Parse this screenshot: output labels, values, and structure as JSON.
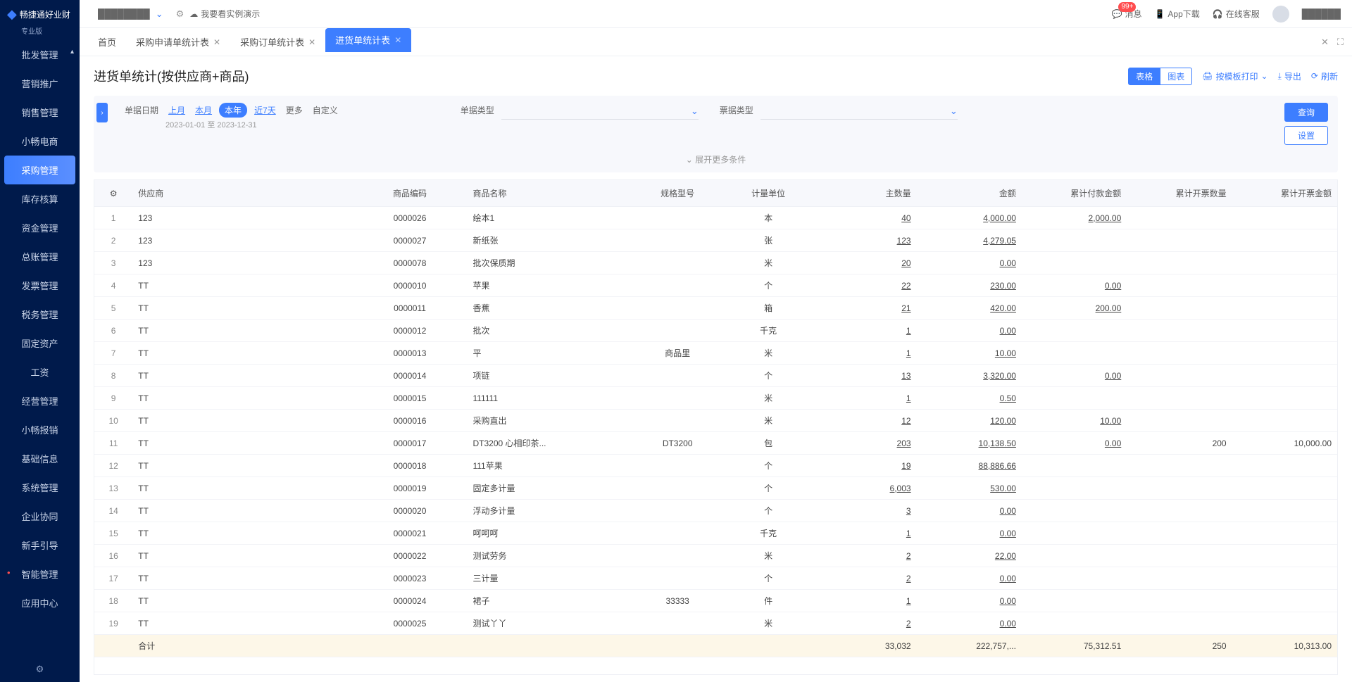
{
  "brand": {
    "name": "畅捷通好业财",
    "edition": "专业版"
  },
  "org": {
    "name": "████████"
  },
  "demo_link": "我要看实例演示",
  "top_right": [
    {
      "icon": "💬",
      "label": "消息",
      "badge": "99+"
    },
    {
      "icon": "📱",
      "label": "App下载"
    },
    {
      "icon": "🎧",
      "label": "在线客服"
    }
  ],
  "user_name": "██████",
  "nav": [
    {
      "label": "批发管理",
      "expanded": true
    },
    {
      "label": "营销推广"
    },
    {
      "label": "销售管理"
    },
    {
      "label": "小畅电商"
    },
    {
      "label": "采购管理",
      "active": true
    },
    {
      "label": "库存核算"
    },
    {
      "label": "资金管理"
    },
    {
      "label": "总账管理"
    },
    {
      "label": "发票管理"
    },
    {
      "label": "税务管理"
    },
    {
      "label": "固定资产"
    },
    {
      "label": "工资"
    },
    {
      "label": "经营管理"
    },
    {
      "label": "小畅报销"
    },
    {
      "label": "基础信息"
    },
    {
      "label": "系统管理"
    },
    {
      "label": "企业协同"
    },
    {
      "label": "新手引导"
    },
    {
      "label": "智能管理",
      "dot": true
    },
    {
      "label": "应用中心"
    }
  ],
  "tabs": [
    {
      "label": "首页",
      "closable": false
    },
    {
      "label": "采购申请单统计表",
      "closable": true
    },
    {
      "label": "采购订单统计表",
      "closable": true
    },
    {
      "label": "进货单统计表",
      "closable": true,
      "active": true
    }
  ],
  "page_title": "进货单统计(按供应商+商品)",
  "view_toggle": {
    "a": "表格",
    "b": "图表"
  },
  "tools": {
    "print": "按模板打印",
    "export": "导出",
    "refresh": "刷新"
  },
  "filters": {
    "date_label": "单据日期",
    "chips": [
      "上月",
      "本月",
      "本年",
      "近7天",
      "更多",
      "自定义"
    ],
    "active_chip": "本年",
    "date_range": "2023-01-01 至 2023-12-31",
    "bill_type_label": "单据类型",
    "invoice_type_label": "票据类型",
    "query_btn": "查询",
    "setting_btn": "设置",
    "expand_more": "展开更多条件"
  },
  "columns": [
    "供应商",
    "商品编码",
    "商品名称",
    "规格型号",
    "计量单位",
    "主数量",
    "金额",
    "累计付款金额",
    "累计开票数量",
    "累计开票金额"
  ],
  "rows": [
    {
      "i": 1,
      "supplier": "123",
      "code": "0000026",
      "name": "绘本1",
      "spec": "",
      "unit": "本",
      "qty": "40",
      "amt": "4,000.00",
      "paid": "2,000.00",
      "invq": "",
      "inva": ""
    },
    {
      "i": 2,
      "supplier": "123",
      "code": "0000027",
      "name": "新纸张",
      "spec": "",
      "unit": "张",
      "qty": "123",
      "amt": "4,279.05",
      "paid": "",
      "invq": "",
      "inva": ""
    },
    {
      "i": 3,
      "supplier": "123",
      "code": "0000078",
      "name": "批次保质期",
      "spec": "",
      "unit": "米",
      "qty": "20",
      "amt": "0.00",
      "paid": "",
      "invq": "",
      "inva": ""
    },
    {
      "i": 4,
      "supplier": "TT",
      "code": "0000010",
      "name": "苹果",
      "spec": "",
      "unit": "个",
      "qty": "22",
      "amt": "230.00",
      "paid": "0.00",
      "invq": "",
      "inva": ""
    },
    {
      "i": 5,
      "supplier": "TT",
      "code": "0000011",
      "name": "香蕉",
      "spec": "",
      "unit": "箱",
      "qty": "21",
      "amt": "420.00",
      "paid": "200.00",
      "invq": "",
      "inva": ""
    },
    {
      "i": 6,
      "supplier": "TT",
      "code": "0000012",
      "name": "批次",
      "spec": "",
      "unit": "千克",
      "qty": "1",
      "amt": "0.00",
      "paid": "",
      "invq": "",
      "inva": ""
    },
    {
      "i": 7,
      "supplier": "TT",
      "code": "0000013",
      "name": "平",
      "spec": "商品里",
      "unit": "米",
      "qty": "1",
      "amt": "10.00",
      "paid": "",
      "invq": "",
      "inva": ""
    },
    {
      "i": 8,
      "supplier": "TT",
      "code": "0000014",
      "name": "项链",
      "spec": "",
      "unit": "个",
      "qty": "13",
      "amt": "3,320.00",
      "paid": "0.00",
      "invq": "",
      "inva": ""
    },
    {
      "i": 9,
      "supplier": "TT",
      "code": "0000015",
      "name": "111111",
      "spec": "",
      "unit": "米",
      "qty": "1",
      "amt": "0.50",
      "paid": "",
      "invq": "",
      "inva": ""
    },
    {
      "i": 10,
      "supplier": "TT",
      "code": "0000016",
      "name": "采购直出",
      "spec": "",
      "unit": "米",
      "qty": "12",
      "amt": "120.00",
      "paid": "10.00",
      "invq": "",
      "inva": ""
    },
    {
      "i": 11,
      "supplier": "TT",
      "code": "0000017",
      "name": "DT3200 心相印茶...",
      "spec": "DT3200",
      "unit": "包",
      "qty": "203",
      "amt": "10,138.50",
      "paid": "0.00",
      "invq": "200",
      "inva": "10,000.00"
    },
    {
      "i": 12,
      "supplier": "TT",
      "code": "0000018",
      "name": "111苹果",
      "spec": "",
      "unit": "个",
      "qty": "19",
      "amt": "88,886.66",
      "paid": "",
      "invq": "",
      "inva": ""
    },
    {
      "i": 13,
      "supplier": "TT",
      "code": "0000019",
      "name": "固定多计量",
      "spec": "",
      "unit": "个",
      "qty": "6,003",
      "amt": "530.00",
      "paid": "",
      "invq": "",
      "inva": ""
    },
    {
      "i": 14,
      "supplier": "TT",
      "code": "0000020",
      "name": "浮动多计量",
      "spec": "",
      "unit": "个",
      "qty": "3",
      "amt": "0.00",
      "paid": "",
      "invq": "",
      "inva": ""
    },
    {
      "i": 15,
      "supplier": "TT",
      "code": "0000021",
      "name": "呵呵呵",
      "spec": "",
      "unit": "千克",
      "qty": "1",
      "amt": "0.00",
      "paid": "",
      "invq": "",
      "inva": ""
    },
    {
      "i": 16,
      "supplier": "TT",
      "code": "0000022",
      "name": "测试劳务",
      "spec": "",
      "unit": "米",
      "qty": "2",
      "amt": "22.00",
      "paid": "",
      "invq": "",
      "inva": ""
    },
    {
      "i": 17,
      "supplier": "TT",
      "code": "0000023",
      "name": "三计量",
      "spec": "",
      "unit": "个",
      "qty": "2",
      "amt": "0.00",
      "paid": "",
      "invq": "",
      "inva": ""
    },
    {
      "i": 18,
      "supplier": "TT",
      "code": "0000024",
      "name": "裙子",
      "spec": "33333",
      "unit": "件",
      "qty": "1",
      "amt": "0.00",
      "paid": "",
      "invq": "",
      "inva": ""
    },
    {
      "i": 19,
      "supplier": "TT",
      "code": "0000025",
      "name": "测试丫丫",
      "spec": "",
      "unit": "米",
      "qty": "2",
      "amt": "0.00",
      "paid": "",
      "invq": "",
      "inva": ""
    }
  ],
  "total": {
    "label": "合计",
    "qty": "33,032",
    "amt": "222,757,...",
    "paid": "75,312.51",
    "invq": "250",
    "inva": "10,313.00"
  }
}
